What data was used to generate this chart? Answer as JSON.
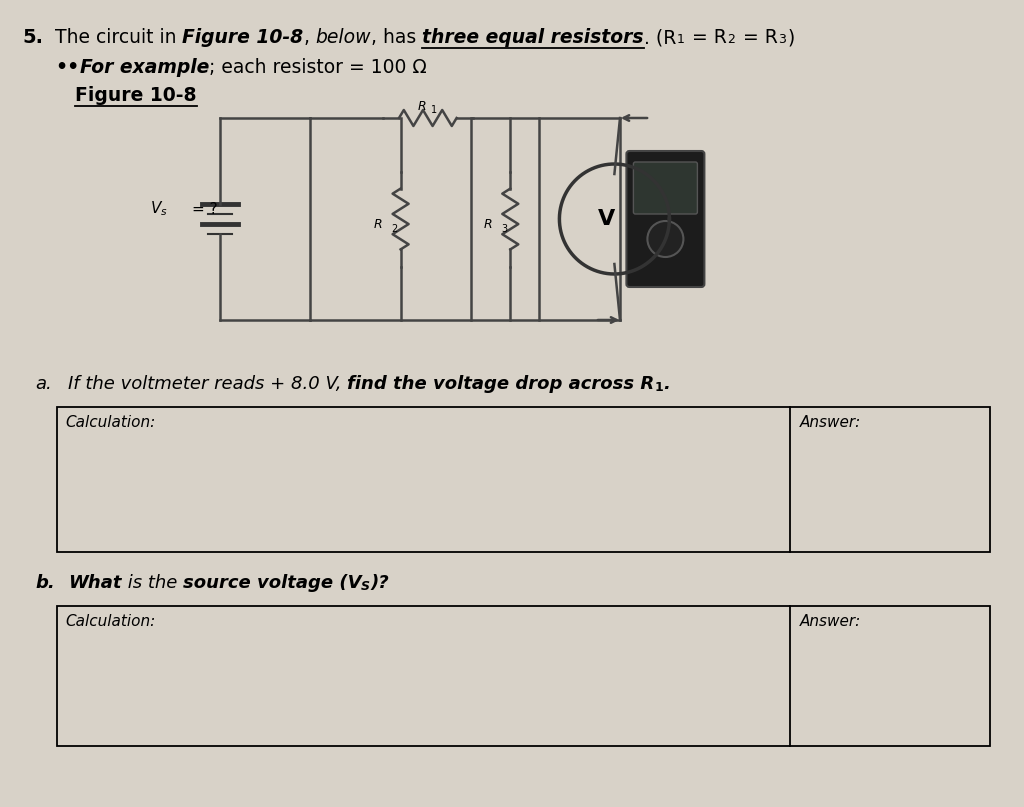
{
  "bg_color": "#c8c0b4",
  "page_bg": "#d8d2c8",
  "line1_number": "5.",
  "line1_plain1": "The circuit in ",
  "line1_bold_italic1": "Figure 10-8",
  "line1_plain2": ", ",
  "line1_italic1": "below",
  "line1_plain3": ", has ",
  "line1_underline_bold_italic": "three equal resistors",
  "line1_plain4": ". (R",
  "line1_sub1": "1",
  "line1_plain5": " = R",
  "line1_sub2": "2",
  "line1_plain6": " = R",
  "line1_sub3": "3",
  "line1_plain7": ")",
  "line2_bullet": "••",
  "line2_bold_italic": "For example",
  "line2_plain": "; each resistor = 100 Ω",
  "line3_underline_bold": "Figure 10-8",
  "qa_letter": "a.",
  "qa_italic1": "If the voltmeter reads + 8.0 V, ",
  "qa_bold_italic": "find the voltage drop across R",
  "qa_sub": "1",
  "qa_period": ".",
  "qb_letter": "b.",
  "qb_bold1": "What",
  "qb_plain": " is the ",
  "qb_bold2": "source voltage (V",
  "qb_sub": "S",
  "qb_bold3": ")?",
  "calc_label": "Calculation:",
  "answer_label": "Answer:",
  "font_size_main": 13,
  "font_size_body": 12.5,
  "circuit_line_color": "#444444",
  "voltmeter_circle_color": "#555555",
  "meter_body_color": "#1a1a1a",
  "wire_color": "#444444"
}
